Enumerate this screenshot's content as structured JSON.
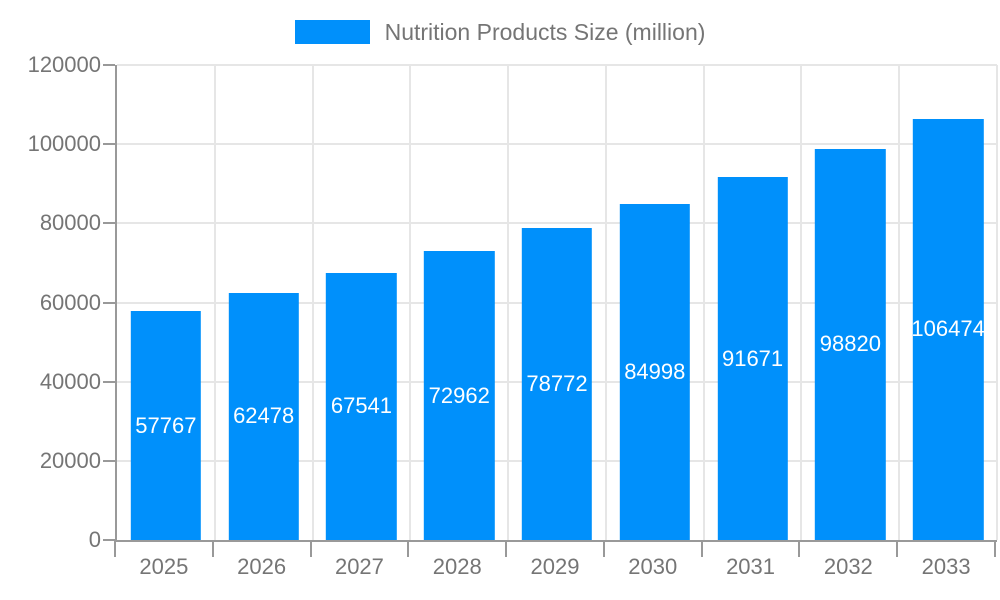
{
  "legend": {
    "label": "Nutrition Products Size (million)"
  },
  "chart_data": {
    "type": "bar",
    "title": "",
    "xlabel": "",
    "ylabel": "",
    "categories": [
      "2025",
      "2026",
      "2027",
      "2028",
      "2029",
      "2030",
      "2031",
      "2032",
      "2033"
    ],
    "series": [
      {
        "name": "Nutrition Products Size (million)",
        "values": [
          57767,
          62478,
          67541,
          72962,
          78772,
          84998,
          91671,
          98820,
          106474
        ]
      }
    ],
    "ylim": [
      0,
      120000
    ],
    "y_ticks": [
      0,
      20000,
      40000,
      60000,
      80000,
      100000,
      120000
    ],
    "grid": true,
    "legend_position": "top",
    "data_labels_position": "inside-center",
    "colors": {
      "bar": "#0090FB",
      "axis_line": "#999999",
      "grid_line": "#e6e6e6",
      "axis_text": "#757575",
      "data_label_text": "#ffffff"
    }
  }
}
